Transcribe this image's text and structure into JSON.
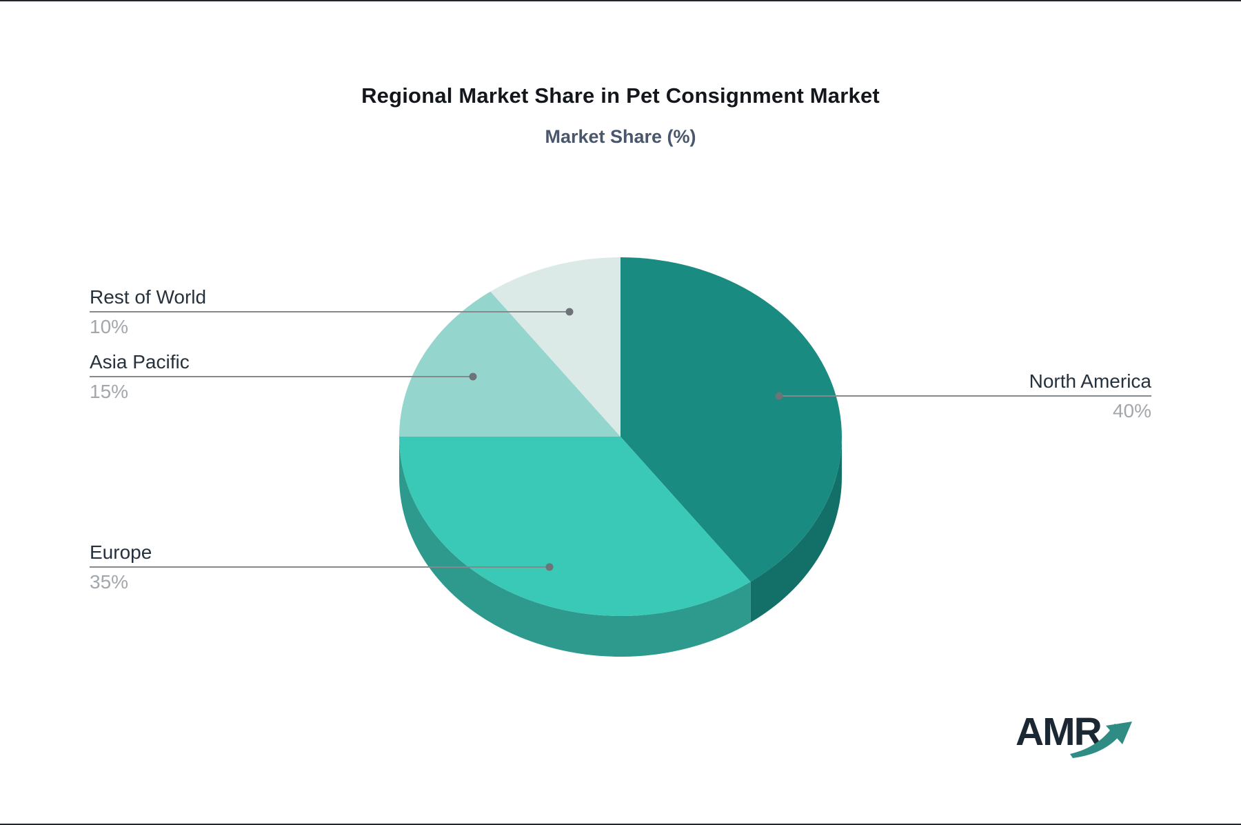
{
  "header": {
    "title": "Regional Market Share in Pet Consignment Market",
    "subtitle": "Market Share (%)"
  },
  "chart_data": {
    "type": "pie",
    "title": "Regional Market Share in Pet Consignment Market",
    "subtitle": "Market Share (%)",
    "unit": "%",
    "start_angle_deg": 0,
    "direction": "clockwise",
    "effect_3d": true,
    "slices": [
      {
        "label": "North America",
        "value": 40,
        "display": "40%",
        "color": "#1a8b80",
        "side_color": "#137068"
      },
      {
        "label": "Europe",
        "value": 35,
        "display": "35%",
        "color": "#39c9b6",
        "side_color": "#2d9a8d"
      },
      {
        "label": "Asia Pacific",
        "value": 15,
        "display": "15%",
        "color": "#94d6ce",
        "side_color": "#7fc2ba"
      },
      {
        "label": "Rest of World",
        "value": 10,
        "display": "10%",
        "color": "#dbeae7",
        "side_color": "#c3d9d5"
      }
    ],
    "leader_line_color": "#85898c",
    "leader_dot_color": "#6e7377"
  },
  "logo": {
    "text": "AMR",
    "arrow_color": "#2e8c84"
  }
}
